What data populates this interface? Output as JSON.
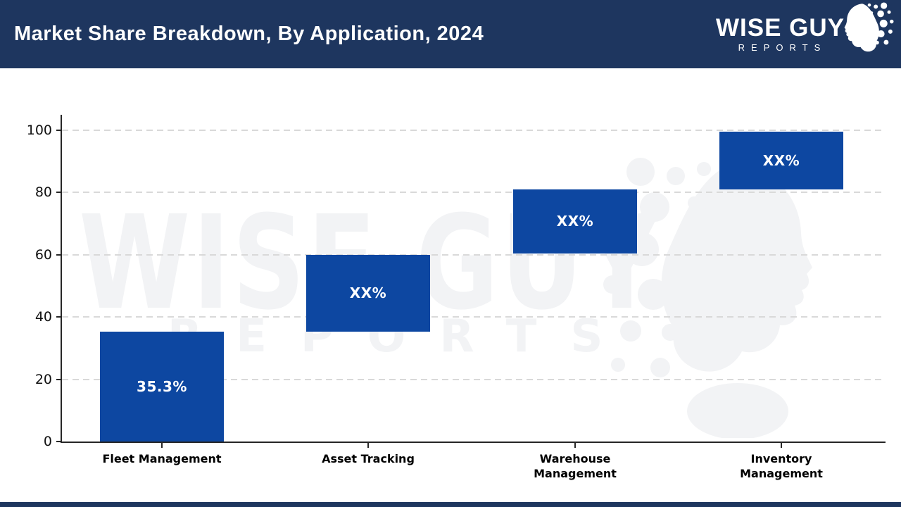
{
  "header": {
    "title": "Market Share Breakdown, By Application, 2024",
    "logo_line1": "WISE GUY",
    "logo_line2": "REPORTS"
  },
  "watermark": {
    "line1": "WISE GUY",
    "line2": "REPORTS"
  },
  "colors": {
    "header_bg": "#1e365f",
    "footer_bg": "#1e365f",
    "bar": "#0d47a1",
    "bar_label": "#ffffff",
    "axis": "#262626",
    "gridline": "#d9d9d9",
    "watermark": "#f2f3f5",
    "title_text": "#ffffff"
  },
  "chart_data": {
    "type": "bar",
    "subtype": "waterfall",
    "title": "Market Share Breakdown, By Application, 2024",
    "categories": [
      "Fleet Management",
      "Asset Tracking",
      "Warehouse Management",
      "Inventory Management"
    ],
    "x_tick_lines": [
      [
        "Fleet Management"
      ],
      [
        "Asset Tracking"
      ],
      [
        "Warehouse",
        "Management"
      ],
      [
        "Inventory",
        "Management"
      ]
    ],
    "series": [
      {
        "name": "Market Share (%)",
        "segments": [
          {
            "category": "Fleet Management",
            "start": 0,
            "end": 35.3,
            "label": "35.3%"
          },
          {
            "category": "Asset Tracking",
            "start": 35.3,
            "end": 60,
            "label": "XX%"
          },
          {
            "category": "Warehouse Management",
            "start": 60.5,
            "end": 81,
            "label": "XX%"
          },
          {
            "category": "Inventory Management",
            "start": 81,
            "end": 99.5,
            "label": "XX%"
          }
        ]
      }
    ],
    "xlabel": "",
    "ylabel": "",
    "ylim": [
      0,
      100
    ],
    "yticks": [
      0,
      20,
      40,
      60,
      80,
      100
    ],
    "grid": "horizontal-dashed",
    "legend": "none"
  }
}
